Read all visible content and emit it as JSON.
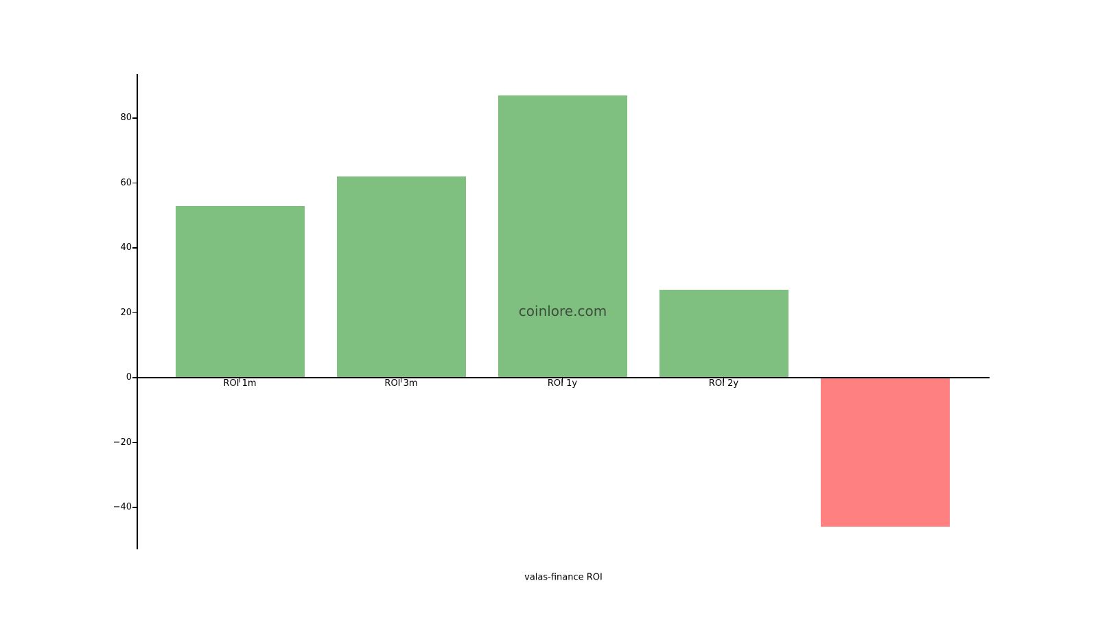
{
  "chart_data": {
    "type": "bar",
    "title": "",
    "xlabel": "valas-finance ROI",
    "ylabel": "",
    "categories": [
      "ROI 1m",
      "ROI 3m",
      "ROI 1y",
      "ROI 2y",
      ""
    ],
    "values": [
      53,
      62,
      87,
      27,
      -46
    ],
    "bar_colors": [
      "#7fbf7f",
      "#7fbf7f",
      "#7fbf7f",
      "#7fbf7f",
      "#ff8080"
    ],
    "positive_color": "#7fbf7f",
    "negative_color": "#ff8080",
    "ytick_labels": [
      "80",
      "60",
      "40",
      "20",
      "0",
      "−20",
      "−40"
    ],
    "ytick_values": [
      80,
      60,
      40,
      20,
      0,
      -20,
      -40
    ],
    "ylim": [
      -52.9,
      93.7
    ],
    "grid": false,
    "legend": null,
    "axis_color": "#000000"
  },
  "watermark": {
    "text": "coinlore.com"
  }
}
